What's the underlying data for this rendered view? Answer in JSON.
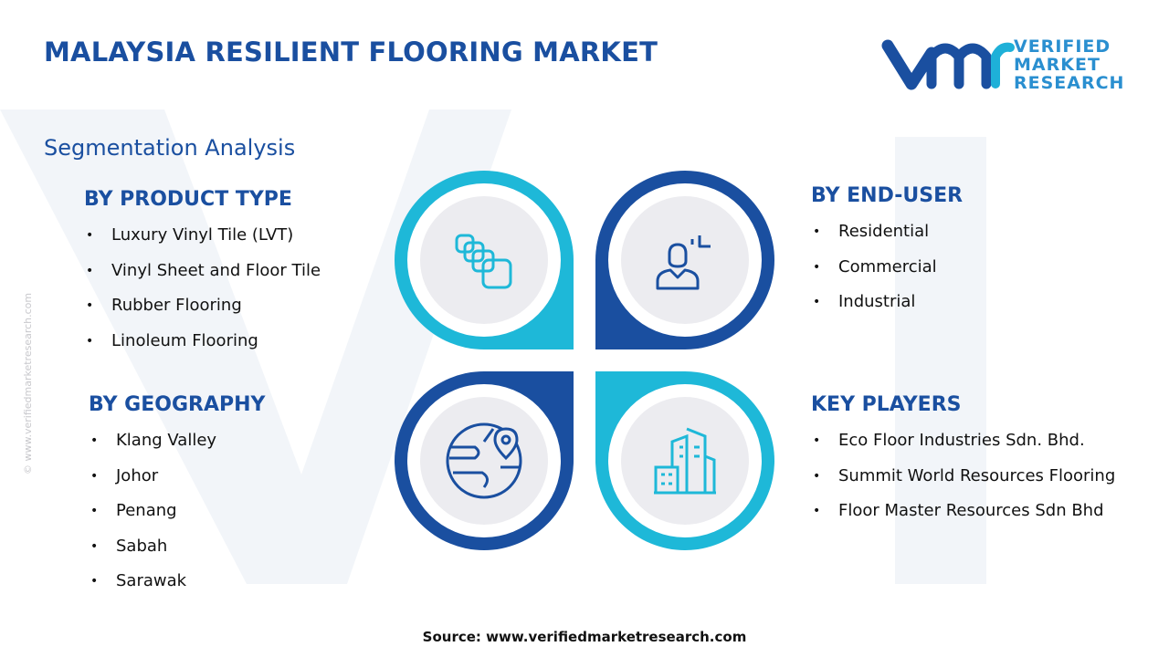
{
  "header": {
    "title": "MALAYSIA RESILIENT FLOORING MARKET",
    "subtitle": "Segmentation Analysis"
  },
  "logo": {
    "lines": [
      "VERIFIED",
      "MARKET",
      "RESEARCH"
    ]
  },
  "sections": [
    {
      "heading": "BY PRODUCT TYPE",
      "items": [
        "Luxury Vinyl Tile (LVT)",
        "Vinyl Sheet and Floor Tile",
        "Rubber Flooring",
        "Linoleum Flooring"
      ]
    },
    {
      "heading": "BY END-USER",
      "items": [
        "Residential",
        "Commercial",
        "Industrial"
      ]
    },
    {
      "heading": "BY GEOGRAPHY",
      "items": [
        "Klang Valley",
        "Johor",
        "Penang",
        "Sabah",
        "Sarawak"
      ]
    },
    {
      "heading": "KEY PLAYERS",
      "items": [
        "Eco Floor Industries Sdn. Bhd.",
        "Summit World Resources Flooring",
        "Floor Master Resources Sdn Bhd"
      ]
    }
  ],
  "watermark": "© www.verifiedmarketresearch.com",
  "source": "Source: www.verifiedmarketresearch.com"
}
